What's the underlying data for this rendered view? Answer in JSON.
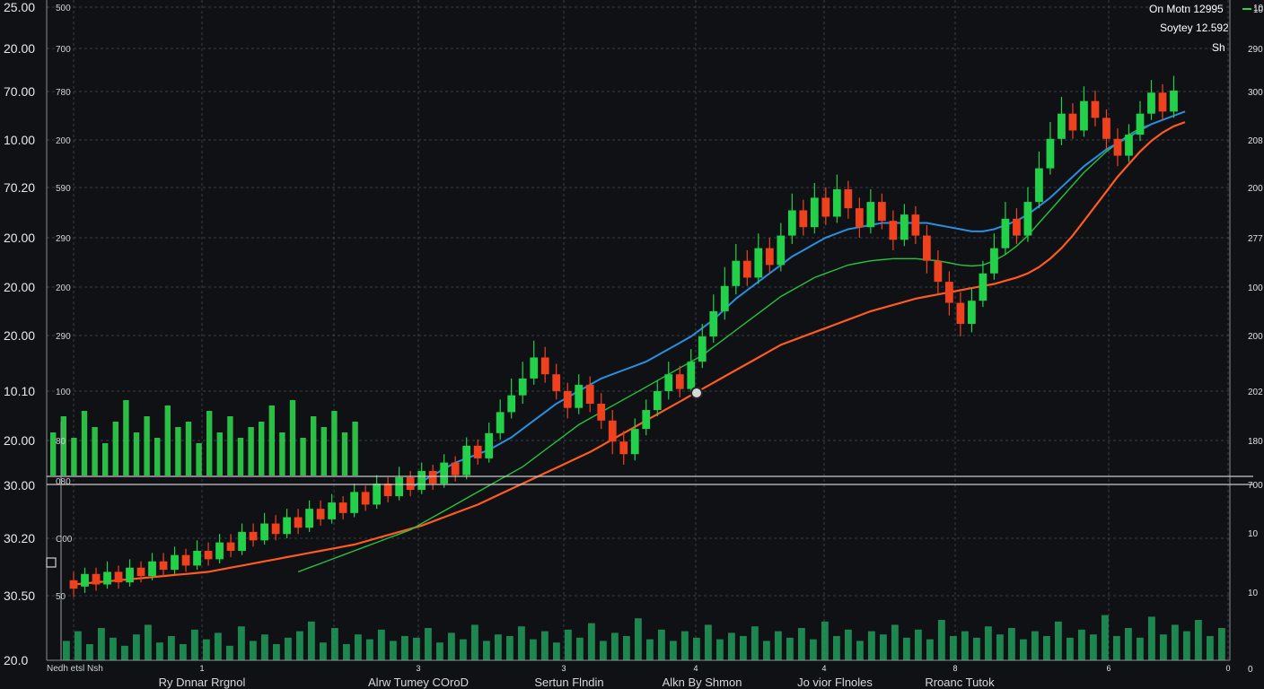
{
  "chart_data": {
    "type": "candlestick",
    "header": {
      "line1": "On Motn 12995",
      "line2": "Soytey 12.592",
      "line3": "Sh",
      "indicator": "10"
    },
    "y_labels_outer": [
      "25.00",
      "20.00",
      "70.00",
      "10.00",
      "70.20",
      "20.00",
      "20.00",
      "20.00",
      "10.10",
      "20.00",
      "30.00",
      "30.20",
      "30.50",
      "20.0"
    ],
    "y_labels_inner": [
      "500",
      "700",
      "780",
      "200",
      "590",
      "290",
      "200",
      "290",
      "100",
      "80",
      "080",
      "C00",
      "50"
    ],
    "y_labels_right": [
      "10",
      "290",
      "300",
      "208",
      "200",
      "277",
      "100",
      "200",
      "202",
      "180",
      "700",
      "10",
      "10",
      "0"
    ],
    "bottom_left_label": "Nedh etsl Nsh",
    "bottom_ticks": [
      "1",
      "3",
      "3",
      "4",
      "4",
      "8",
      "6",
      "0"
    ],
    "bottom_labels": [
      "Ry Dnnar Rrgnol",
      "Alrw Tumey COroD",
      "Sertun Flndin",
      "Alkn By Shmon",
      "Jo vior Flnoles",
      "Rroanc Tutok"
    ],
    "grid": true,
    "candles": [
      {
        "o": 20.6,
        "c": 20.2,
        "h": 21.0,
        "l": 19.8
      },
      {
        "o": 20.3,
        "c": 20.9,
        "h": 21.2,
        "l": 20.0
      },
      {
        "o": 20.9,
        "c": 20.4,
        "h": 21.2,
        "l": 20.1
      },
      {
        "o": 20.4,
        "c": 21.0,
        "h": 21.5,
        "l": 20.2
      },
      {
        "o": 21.0,
        "c": 20.5,
        "h": 21.3,
        "l": 20.2
      },
      {
        "o": 20.5,
        "c": 21.2,
        "h": 21.6,
        "l": 20.3
      },
      {
        "o": 21.2,
        "c": 20.8,
        "h": 21.5,
        "l": 20.5
      },
      {
        "o": 20.8,
        "c": 21.5,
        "h": 21.9,
        "l": 20.6
      },
      {
        "o": 21.5,
        "c": 21.1,
        "h": 21.9,
        "l": 20.8
      },
      {
        "o": 21.1,
        "c": 21.8,
        "h": 22.2,
        "l": 20.9
      },
      {
        "o": 21.8,
        "c": 21.3,
        "h": 22.1,
        "l": 21.0
      },
      {
        "o": 21.3,
        "c": 22.0,
        "h": 22.5,
        "l": 21.1
      },
      {
        "o": 22.0,
        "c": 21.6,
        "h": 22.4,
        "l": 21.3
      },
      {
        "o": 21.6,
        "c": 22.4,
        "h": 22.8,
        "l": 21.4
      },
      {
        "o": 22.4,
        "c": 22.0,
        "h": 22.8,
        "l": 21.7
      },
      {
        "o": 22.0,
        "c": 22.9,
        "h": 23.3,
        "l": 21.8
      },
      {
        "o": 22.9,
        "c": 22.5,
        "h": 23.3,
        "l": 22.2
      },
      {
        "o": 22.5,
        "c": 23.3,
        "h": 23.8,
        "l": 22.3
      },
      {
        "o": 23.3,
        "c": 22.8,
        "h": 23.7,
        "l": 22.5
      },
      {
        "o": 22.8,
        "c": 23.6,
        "h": 24.0,
        "l": 22.6
      },
      {
        "o": 23.6,
        "c": 23.1,
        "h": 24.0,
        "l": 22.8
      },
      {
        "o": 23.1,
        "c": 24.0,
        "h": 24.4,
        "l": 22.9
      },
      {
        "o": 24.0,
        "c": 23.5,
        "h": 24.4,
        "l": 23.2
      },
      {
        "o": 23.5,
        "c": 24.3,
        "h": 24.7,
        "l": 23.3
      },
      {
        "o": 24.3,
        "c": 23.8,
        "h": 24.6,
        "l": 23.5
      },
      {
        "o": 23.8,
        "c": 24.8,
        "h": 25.2,
        "l": 23.6
      },
      {
        "o": 24.8,
        "c": 24.2,
        "h": 25.1,
        "l": 23.9
      },
      {
        "o": 24.2,
        "c": 25.2,
        "h": 25.6,
        "l": 24.0
      },
      {
        "o": 25.2,
        "c": 24.6,
        "h": 25.5,
        "l": 24.3
      },
      {
        "o": 24.6,
        "c": 25.5,
        "h": 26.0,
        "l": 24.4
      },
      {
        "o": 25.5,
        "c": 24.9,
        "h": 25.8,
        "l": 24.6
      },
      {
        "o": 24.9,
        "c": 25.8,
        "h": 26.2,
        "l": 24.7
      },
      {
        "o": 25.8,
        "c": 25.2,
        "h": 26.1,
        "l": 24.9
      },
      {
        "o": 25.2,
        "c": 26.2,
        "h": 26.6,
        "l": 25.0
      },
      {
        "o": 26.2,
        "c": 25.6,
        "h": 26.5,
        "l": 25.3
      },
      {
        "o": 25.6,
        "c": 27.0,
        "h": 27.4,
        "l": 25.4
      },
      {
        "o": 27.0,
        "c": 26.4,
        "h": 27.3,
        "l": 26.1
      },
      {
        "o": 26.4,
        "c": 27.6,
        "h": 28.1,
        "l": 26.2
      },
      {
        "o": 27.6,
        "c": 28.6,
        "h": 29.2,
        "l": 27.3
      },
      {
        "o": 28.6,
        "c": 29.4,
        "h": 30.2,
        "l": 28.3
      },
      {
        "o": 29.4,
        "c": 30.2,
        "h": 31.0,
        "l": 29.0
      },
      {
        "o": 30.2,
        "c": 31.2,
        "h": 32.0,
        "l": 29.9
      },
      {
        "o": 31.2,
        "c": 30.4,
        "h": 31.7,
        "l": 30.0
      },
      {
        "o": 30.4,
        "c": 29.6,
        "h": 30.9,
        "l": 29.2
      },
      {
        "o": 29.6,
        "c": 28.8,
        "h": 30.0,
        "l": 28.3
      },
      {
        "o": 28.8,
        "c": 29.9,
        "h": 30.4,
        "l": 28.5
      },
      {
        "o": 29.9,
        "c": 29.0,
        "h": 30.3,
        "l": 28.6
      },
      {
        "o": 29.0,
        "c": 28.2,
        "h": 29.5,
        "l": 27.8
      },
      {
        "o": 28.2,
        "c": 27.2,
        "h": 28.7,
        "l": 26.6
      },
      {
        "o": 27.2,
        "c": 26.6,
        "h": 27.7,
        "l": 26.1
      },
      {
        "o": 26.6,
        "c": 27.8,
        "h": 28.3,
        "l": 26.3
      },
      {
        "o": 27.8,
        "c": 28.7,
        "h": 29.2,
        "l": 27.5
      },
      {
        "o": 28.7,
        "c": 29.6,
        "h": 30.1,
        "l": 28.4
      },
      {
        "o": 29.6,
        "c": 30.4,
        "h": 31.0,
        "l": 29.2
      },
      {
        "o": 30.4,
        "c": 29.7,
        "h": 30.8,
        "l": 29.3
      },
      {
        "o": 29.7,
        "c": 31.0,
        "h": 31.6,
        "l": 29.4
      },
      {
        "o": 31.0,
        "c": 32.2,
        "h": 32.8,
        "l": 30.7
      },
      {
        "o": 32.2,
        "c": 33.4,
        "h": 34.2,
        "l": 31.9
      },
      {
        "o": 33.4,
        "c": 34.6,
        "h": 35.5,
        "l": 33.0
      },
      {
        "o": 34.6,
        "c": 35.8,
        "h": 36.6,
        "l": 34.2
      },
      {
        "o": 35.8,
        "c": 35.0,
        "h": 36.3,
        "l": 34.6
      },
      {
        "o": 35.0,
        "c": 36.4,
        "h": 37.1,
        "l": 34.7
      },
      {
        "o": 36.4,
        "c": 35.6,
        "h": 36.9,
        "l": 35.2
      },
      {
        "o": 35.6,
        "c": 37.0,
        "h": 37.6,
        "l": 35.3
      },
      {
        "o": 37.0,
        "c": 38.2,
        "h": 39.0,
        "l": 36.6
      },
      {
        "o": 38.2,
        "c": 37.4,
        "h": 38.7,
        "l": 37.0
      },
      {
        "o": 37.4,
        "c": 38.8,
        "h": 39.5,
        "l": 37.1
      },
      {
        "o": 38.8,
        "c": 37.9,
        "h": 39.3,
        "l": 37.5
      },
      {
        "o": 37.9,
        "c": 39.2,
        "h": 39.9,
        "l": 37.6
      },
      {
        "o": 39.2,
        "c": 38.3,
        "h": 39.6,
        "l": 37.8
      },
      {
        "o": 38.3,
        "c": 37.4,
        "h": 38.8,
        "l": 36.9
      },
      {
        "o": 37.4,
        "c": 38.6,
        "h": 39.2,
        "l": 37.1
      },
      {
        "o": 38.6,
        "c": 37.7,
        "h": 39.0,
        "l": 37.3
      },
      {
        "o": 37.7,
        "c": 36.8,
        "h": 38.2,
        "l": 36.3
      },
      {
        "o": 36.8,
        "c": 38.0,
        "h": 38.5,
        "l": 36.5
      },
      {
        "o": 38.0,
        "c": 37.0,
        "h": 38.4,
        "l": 36.6
      },
      {
        "o": 37.0,
        "c": 35.8,
        "h": 37.5,
        "l": 35.2
      },
      {
        "o": 35.8,
        "c": 34.8,
        "h": 36.3,
        "l": 34.2
      },
      {
        "o": 34.8,
        "c": 33.8,
        "h": 35.3,
        "l": 33.2
      },
      {
        "o": 33.8,
        "c": 32.8,
        "h": 34.3,
        "l": 32.2
      },
      {
        "o": 32.8,
        "c": 33.9,
        "h": 34.5,
        "l": 32.4
      },
      {
        "o": 33.9,
        "c": 35.2,
        "h": 35.8,
        "l": 33.6
      },
      {
        "o": 35.2,
        "c": 36.4,
        "h": 37.1,
        "l": 34.9
      },
      {
        "o": 36.4,
        "c": 37.8,
        "h": 38.6,
        "l": 36.1
      },
      {
        "o": 37.8,
        "c": 37.0,
        "h": 38.3,
        "l": 36.6
      },
      {
        "o": 37.0,
        "c": 38.6,
        "h": 39.3,
        "l": 36.7
      },
      {
        "o": 38.6,
        "c": 40.2,
        "h": 41.0,
        "l": 38.3
      },
      {
        "o": 40.2,
        "c": 41.6,
        "h": 42.4,
        "l": 39.9
      },
      {
        "o": 41.6,
        "c": 42.8,
        "h": 43.6,
        "l": 41.3
      },
      {
        "o": 42.8,
        "c": 42.0,
        "h": 43.3,
        "l": 41.6
      },
      {
        "o": 42.0,
        "c": 43.4,
        "h": 44.1,
        "l": 41.7
      },
      {
        "o": 43.4,
        "c": 42.6,
        "h": 43.9,
        "l": 42.2
      },
      {
        "o": 42.6,
        "c": 41.6,
        "h": 43.0,
        "l": 41.1
      },
      {
        "o": 41.6,
        "c": 40.8,
        "h": 42.1,
        "l": 40.3
      },
      {
        "o": 40.8,
        "c": 41.8,
        "h": 42.3,
        "l": 40.5
      },
      {
        "o": 41.8,
        "c": 42.8,
        "h": 43.4,
        "l": 41.5
      },
      {
        "o": 42.8,
        "c": 43.8,
        "h": 44.4,
        "l": 42.5
      },
      {
        "o": 43.8,
        "c": 42.9,
        "h": 44.2,
        "l": 42.5
      },
      {
        "o": 42.9,
        "c": 43.9,
        "h": 44.6,
        "l": 42.6
      }
    ],
    "ma_blue": [
      null,
      null,
      null,
      null,
      null,
      null,
      null,
      null,
      null,
      null,
      null,
      null,
      null,
      null,
      null,
      null,
      null,
      null,
      null,
      null,
      null,
      null,
      null,
      null,
      null,
      null,
      null,
      null,
      null,
      null,
      25.0,
      25.3,
      25.6,
      25.9,
      26.2,
      26.4,
      26.6,
      26.8,
      27.1,
      27.4,
      27.8,
      28.2,
      28.6,
      29.0,
      29.3,
      29.6,
      29.9,
      30.2,
      30.4,
      30.6,
      30.8,
      31.0,
      31.3,
      31.6,
      31.9,
      32.2,
      32.6,
      33.0,
      33.5,
      34.0,
      34.4,
      34.8,
      35.2,
      35.6,
      36.0,
      36.3,
      36.6,
      36.9,
      37.1,
      37.3,
      37.4,
      37.5,
      37.6,
      37.6,
      37.6,
      37.6,
      37.6,
      37.5,
      37.4,
      37.3,
      37.2,
      37.2,
      37.3,
      37.5,
      37.7,
      38.0,
      38.4,
      38.8,
      39.3,
      39.8,
      40.3,
      40.7,
      41.1,
      41.4,
      41.7,
      42.0,
      42.3,
      42.5,
      42.7,
      42.9
    ],
    "ma_orange": [
      20.4,
      20.45,
      20.5,
      20.55,
      20.6,
      20.65,
      20.7,
      20.75,
      20.8,
      20.85,
      20.9,
      20.95,
      21.0,
      21.1,
      21.2,
      21.3,
      21.4,
      21.5,
      21.6,
      21.7,
      21.8,
      21.9,
      22.0,
      22.1,
      22.2,
      22.3,
      22.45,
      22.6,
      22.75,
      22.9,
      23.05,
      23.2,
      23.4,
      23.6,
      23.8,
      24.0,
      24.2,
      24.45,
      24.7,
      24.95,
      25.2,
      25.45,
      25.7,
      25.95,
      26.2,
      26.45,
      26.7,
      27.0,
      27.3,
      27.6,
      27.9,
      28.2,
      28.5,
      28.8,
      29.1,
      29.4,
      29.7,
      30.0,
      30.3,
      30.6,
      30.9,
      31.2,
      31.5,
      31.8,
      32.0,
      32.2,
      32.4,
      32.6,
      32.8,
      33.0,
      33.2,
      33.4,
      33.55,
      33.7,
      33.85,
      34.0,
      34.1,
      34.2,
      34.3,
      34.4,
      34.5,
      34.6,
      34.7,
      34.85,
      35.0,
      35.2,
      35.5,
      35.9,
      36.4,
      37.0,
      37.7,
      38.4,
      39.1,
      39.8,
      40.4,
      41.0,
      41.5,
      41.9,
      42.2,
      42.4
    ],
    "ma_green": [
      null,
      null,
      null,
      null,
      null,
      null,
      null,
      null,
      null,
      null,
      null,
      null,
      null,
      null,
      null,
      null,
      null,
      null,
      null,
      null,
      21.0,
      21.2,
      21.4,
      21.6,
      21.8,
      22.0,
      22.2,
      22.4,
      22.6,
      22.8,
      23.0,
      23.3,
      23.6,
      23.9,
      24.2,
      24.5,
      24.8,
      25.1,
      25.4,
      25.7,
      26.0,
      26.4,
      26.8,
      27.2,
      27.6,
      28.0,
      28.3,
      28.6,
      28.9,
      29.2,
      29.5,
      29.8,
      30.1,
      30.4,
      30.7,
      31.0,
      31.3,
      31.7,
      32.1,
      32.5,
      32.9,
      33.3,
      33.7,
      34.1,
      34.4,
      34.7,
      35.0,
      35.2,
      35.4,
      35.6,
      35.7,
      35.8,
      35.85,
      35.9,
      35.9,
      35.9,
      35.85,
      35.8,
      35.7,
      35.6,
      35.55,
      35.6,
      35.8,
      36.1,
      36.5,
      37.0,
      37.6,
      38.2,
      38.8,
      39.4,
      40.0,
      40.5,
      41.0,
      41.4,
      41.8,
      42.1,
      42.3,
      42.5,
      42.7,
      42.9
    ],
    "volume_upper": [
      40,
      55,
      35,
      60,
      45,
      30,
      50,
      70,
      40,
      55,
      35,
      65,
      45,
      50,
      30,
      60,
      40,
      55,
      35,
      45,
      50,
      65,
      40,
      70,
      35,
      55,
      45,
      60,
      40,
      50
    ],
    "volume_lower": [
      12,
      18,
      10,
      20,
      14,
      9,
      16,
      22,
      11,
      15,
      10,
      19,
      13,
      17,
      9,
      21,
      12,
      16,
      10,
      14,
      18,
      24,
      11,
      20,
      10,
      16,
      13,
      19,
      12,
      15,
      14,
      20,
      11,
      17,
      13,
      22,
      12,
      16,
      15,
      21,
      13,
      18,
      11,
      19,
      14,
      23,
      12,
      17,
      15,
      26,
      13,
      19,
      12,
      18,
      14,
      22,
      13,
      17,
      15,
      21,
      12,
      18,
      14,
      20,
      13,
      24,
      15,
      19,
      12,
      18,
      16,
      22,
      14,
      19,
      13,
      25,
      15,
      18,
      14,
      21,
      16,
      20,
      13,
      18,
      15,
      24,
      14,
      19,
      16,
      28,
      15,
      20,
      14,
      27,
      16,
      22,
      18,
      25,
      15,
      20
    ]
  }
}
